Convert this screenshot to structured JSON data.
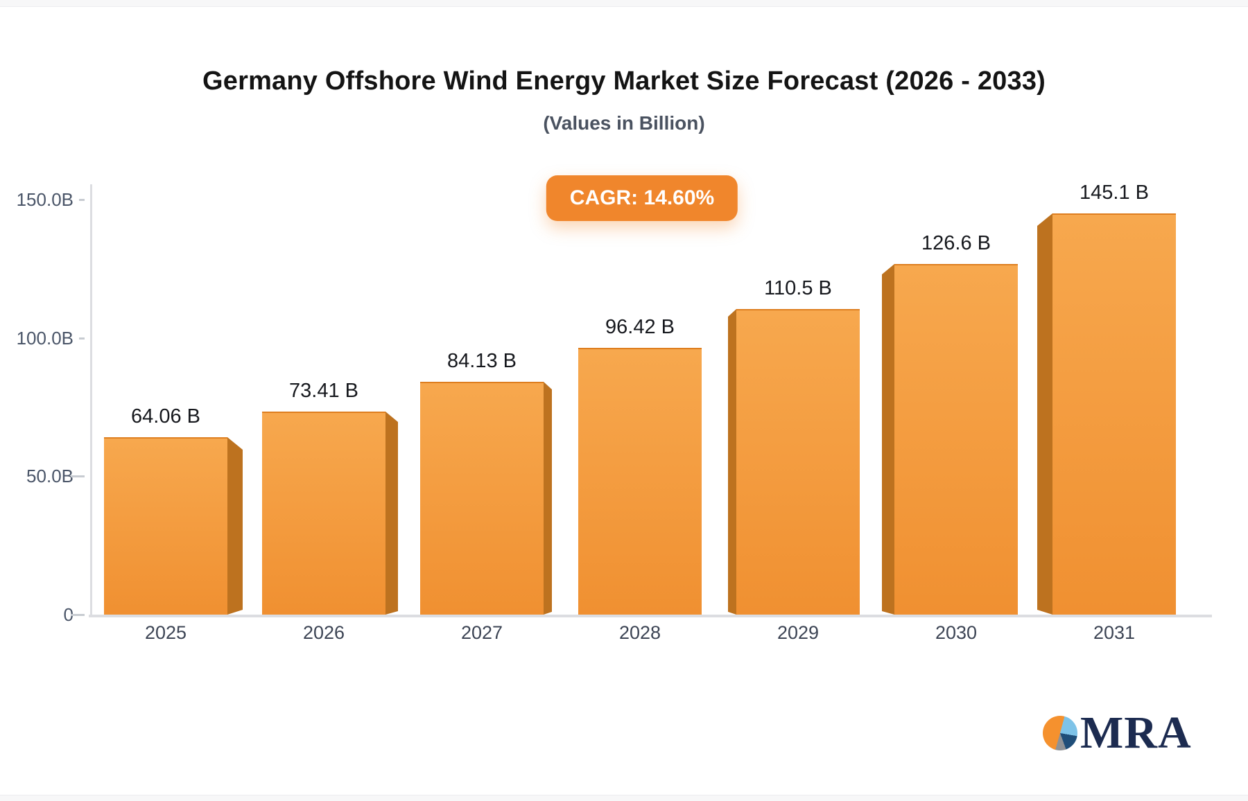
{
  "chart_data": {
    "type": "bar",
    "title": "Germany Offshore Wind Energy Market Size Forecast (2026 - 2033)",
    "subtitle": "(Values in Billion)",
    "cagr_label": "CAGR: 14.60%",
    "categories": [
      "2025",
      "2026",
      "2027",
      "2028",
      "2029",
      "2030",
      "2031"
    ],
    "values": [
      64.06,
      73.41,
      84.13,
      96.42,
      110.5,
      126.6,
      145.1
    ],
    "value_labels": [
      "64.06 B",
      "73.41 B",
      "84.13 B",
      "96.42 B",
      "110.5 B",
      "126.6 B",
      "145.1 B"
    ],
    "xlabel": "",
    "ylabel": "",
    "ylim": [
      0,
      150
    ],
    "yticks": [
      {
        "value": 0,
        "label": "0"
      },
      {
        "value": 50,
        "label": "50.0B"
      },
      {
        "value": 100,
        "label": "100.0B"
      },
      {
        "value": 150,
        "label": "150.0B"
      }
    ],
    "grid": false,
    "legend": "none",
    "bar_style": "3d-extruded, perspective toward center (side faces on right for left bars, on left for right bars)",
    "colors": {
      "title_color": "#141414",
      "subtitle_color": "#4a5260",
      "badge_bg": "#f0862c",
      "bar_top": "#f7a84e",
      "bar_bottom": "#f09031",
      "bar_side": "#bd721f",
      "bar_stroke": "#de7e1f",
      "axis_color": "#dcdde1",
      "ytick_color": "#4a5568",
      "xlabel_color": "#3c4454",
      "value_color": "#16181d",
      "logo_color": "#1c2b50"
    }
  },
  "logo": {
    "text": "MRA",
    "icon": "pie-chart-icon",
    "icon_segments": [
      {
        "color": "#f5912e",
        "from": 0,
        "to": 15
      },
      {
        "color": "#7ec3e8",
        "from": 15,
        "to": 100
      },
      {
        "color": "#1f4e79",
        "from": 100,
        "to": 160
      },
      {
        "color": "#8f9296",
        "from": 160,
        "to": 196
      },
      {
        "color": "#f5912e",
        "from": 196,
        "to": 360
      }
    ]
  }
}
